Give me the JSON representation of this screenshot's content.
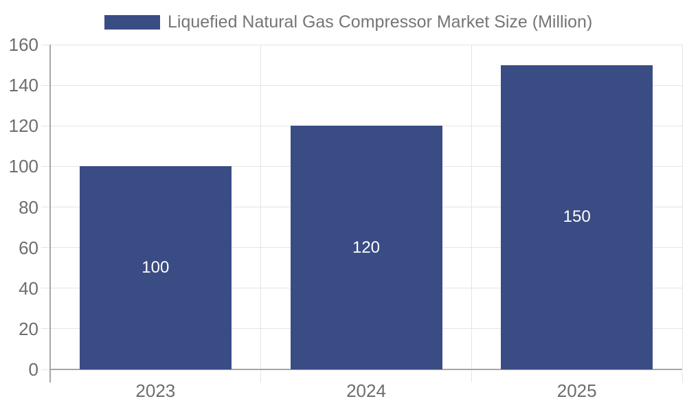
{
  "legend": {
    "label": "Liquefied Natural Gas Compressor Market Size (Million)"
  },
  "chart_data": {
    "type": "bar",
    "title": "Liquefied Natural Gas Compressor Market Size (Million)",
    "categories": [
      "2023",
      "2024",
      "2025"
    ],
    "series": [
      {
        "name": "Liquefied Natural Gas Compressor Market Size (Million)",
        "values": [
          100,
          120,
          150
        ]
      }
    ],
    "data_labels": [
      "100",
      "120",
      "150"
    ],
    "xlabel": "",
    "ylabel": "",
    "ylim": [
      0,
      160
    ],
    "ytick_step": 20,
    "yticks": [
      0,
      20,
      40,
      60,
      80,
      100,
      120,
      140,
      160
    ],
    "grid": true,
    "legend_position": "top",
    "colors": {
      "bar": "#3a4c84",
      "grid": "#e4e4e4",
      "axis": "#a6a6a6",
      "tick_text": "#6d6d6d",
      "legend_text": "#757575",
      "value_label": "#ffffff",
      "background": "#ffffff"
    }
  }
}
